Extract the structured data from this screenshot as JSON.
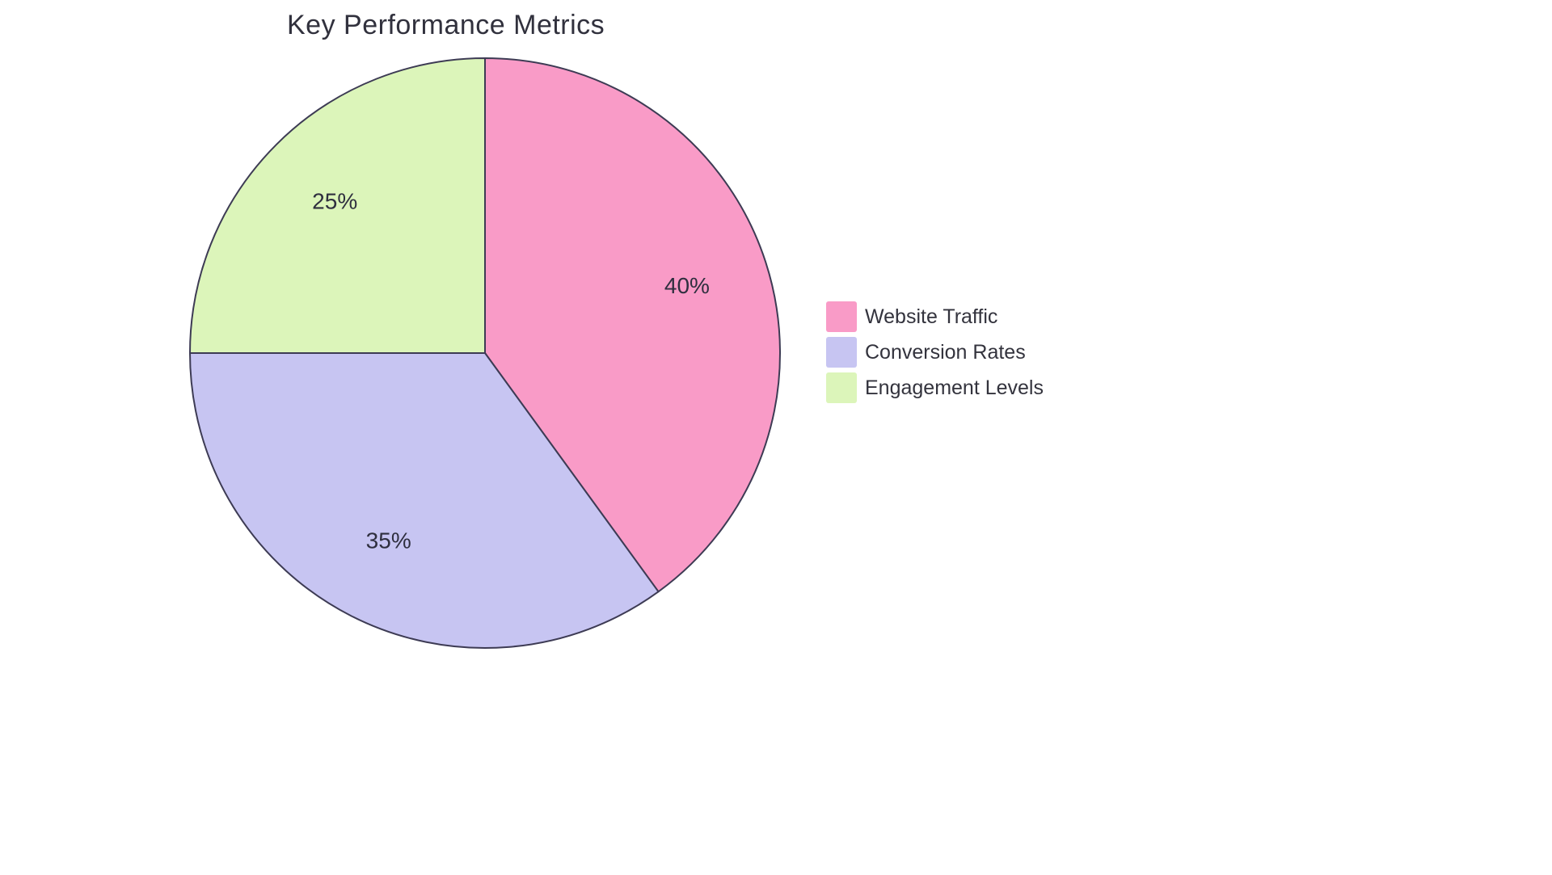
{
  "title": "Key Performance Metrics",
  "chart_data": {
    "type": "pie",
    "title": "Key Performance Metrics",
    "slices": [
      {
        "label": "Website Traffic",
        "value": 40,
        "percent_label": "40%",
        "color": "#F99BC7"
      },
      {
        "label": "Conversion Rates",
        "value": 35,
        "percent_label": "35%",
        "color": "#C7C5F2"
      },
      {
        "label": "Engagement Levels",
        "value": 25,
        "percent_label": "25%",
        "color": "#DCF5BA"
      }
    ],
    "start_angle": "top",
    "direction": "clockwise",
    "outline_color": "#3D3B54",
    "label_color": "#2F2F3F",
    "legend_position": "right",
    "background": "#FFFFFF"
  }
}
